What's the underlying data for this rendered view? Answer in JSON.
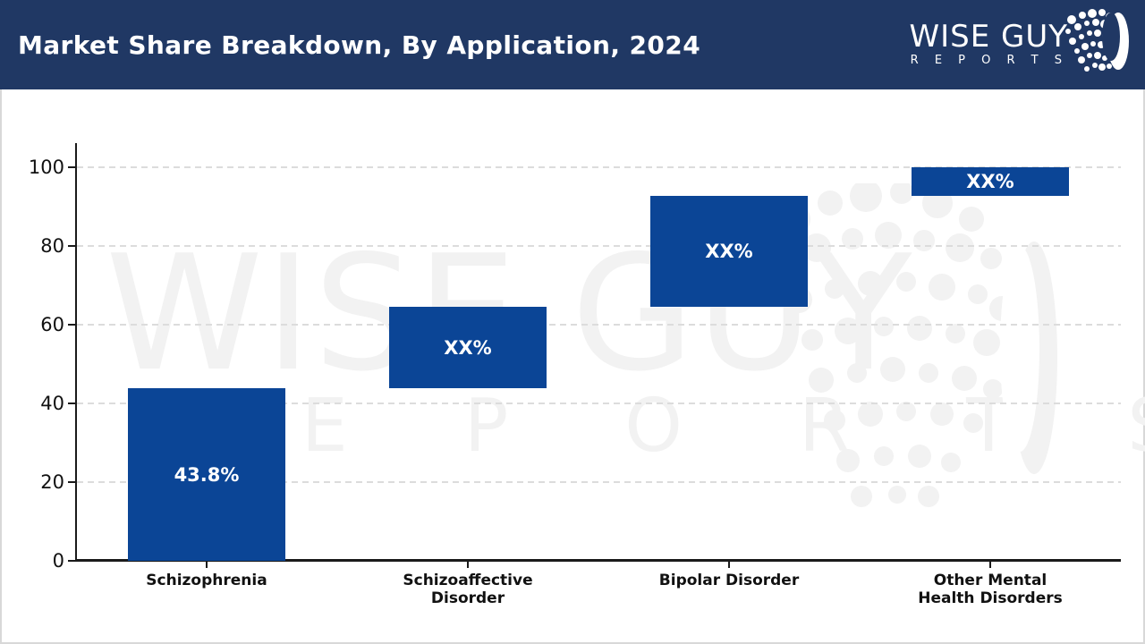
{
  "header": {
    "title": "Market Share Breakdown, By Application, 2024",
    "logo": {
      "line1": "WISE GUY",
      "line2": "R E P O R T S"
    }
  },
  "watermark": {
    "line1": "WISE GUY",
    "line2": "R E P O R T S"
  },
  "colors": {
    "header_bg": "#203864",
    "bar": "#0b4596",
    "axis": "#1a1a1a",
    "grid": "#dcdcdc",
    "watermark": "#f2f2f2",
    "title_text": "#ffffff",
    "bar_label_text": "#ffffff",
    "tick_label_text": "#111111"
  },
  "chart_data": {
    "type": "bar",
    "subtype": "waterfall",
    "title": "Market Share Breakdown, By Application, 2024",
    "categories": [
      "Schizophrenia",
      "Schizoaffective Disorder",
      "Bipolar Disorder",
      "Other Mental Health Disorders"
    ],
    "category_lines": [
      [
        "Schizophrenia"
      ],
      [
        "Schizoaffective",
        "Disorder"
      ],
      [
        "Bipolar Disorder"
      ],
      [
        "Other Mental",
        "Health Disorders"
      ]
    ],
    "series": [
      {
        "name": "Market share by application (%)",
        "segments": [
          {
            "category": "Schizophrenia",
            "from": 0,
            "to": 43.8,
            "label": "43.8%"
          },
          {
            "category": "Schizoaffective Disorder",
            "from": 43.8,
            "to": 64.5,
            "label": "XX%"
          },
          {
            "category": "Bipolar Disorder",
            "from": 64.5,
            "to": 92.7,
            "label": "XX%"
          },
          {
            "category": "Other Mental Health Disorders",
            "from": 92.7,
            "to": 100,
            "label": "XX%"
          }
        ]
      }
    ],
    "xlabel": "",
    "ylabel": "",
    "ylim": [
      0,
      106
    ],
    "yticks": [
      0,
      20,
      40,
      60,
      80,
      100
    ],
    "grid": "horizontal-dashed",
    "legend": "none"
  }
}
